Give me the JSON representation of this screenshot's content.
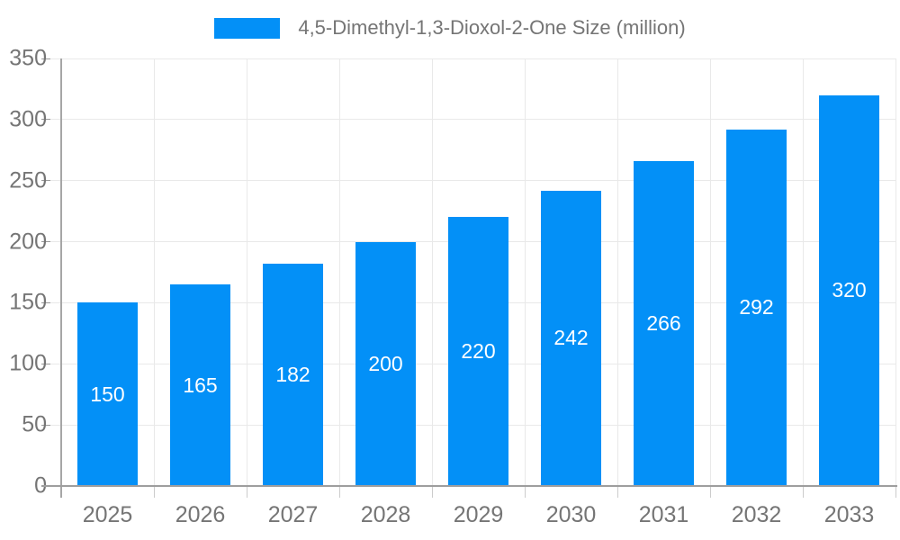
{
  "legend": {
    "label": "4,5-Dimethyl-1,3-Dioxol-2-One Size (million)"
  },
  "chart_data": {
    "type": "bar",
    "title": "",
    "series_name": "4,5-Dimethyl-1,3-Dioxol-2-One Size (million)",
    "categories": [
      "2025",
      "2026",
      "2027",
      "2028",
      "2029",
      "2030",
      "2031",
      "2032",
      "2033"
    ],
    "values": [
      150,
      165,
      182,
      200,
      220,
      242,
      266,
      292,
      320
    ],
    "xlabel": "",
    "ylabel": "",
    "ylim": [
      0,
      350
    ],
    "yticks": [
      0,
      50,
      100,
      150,
      200,
      250,
      300,
      350
    ],
    "grid": true,
    "legend_position": "top",
    "bar_labels_inside": true,
    "colors": {
      "bar": "#0390f7",
      "bar_label": "#ffffff",
      "axis_text": "#757575",
      "gridline": "#e9e9e9",
      "axis_line": "#a6a6a6",
      "baseline": "#9e9e9e",
      "y_tick": "#999999",
      "x_tick": "#cccccc",
      "background": "#ffffff"
    }
  }
}
